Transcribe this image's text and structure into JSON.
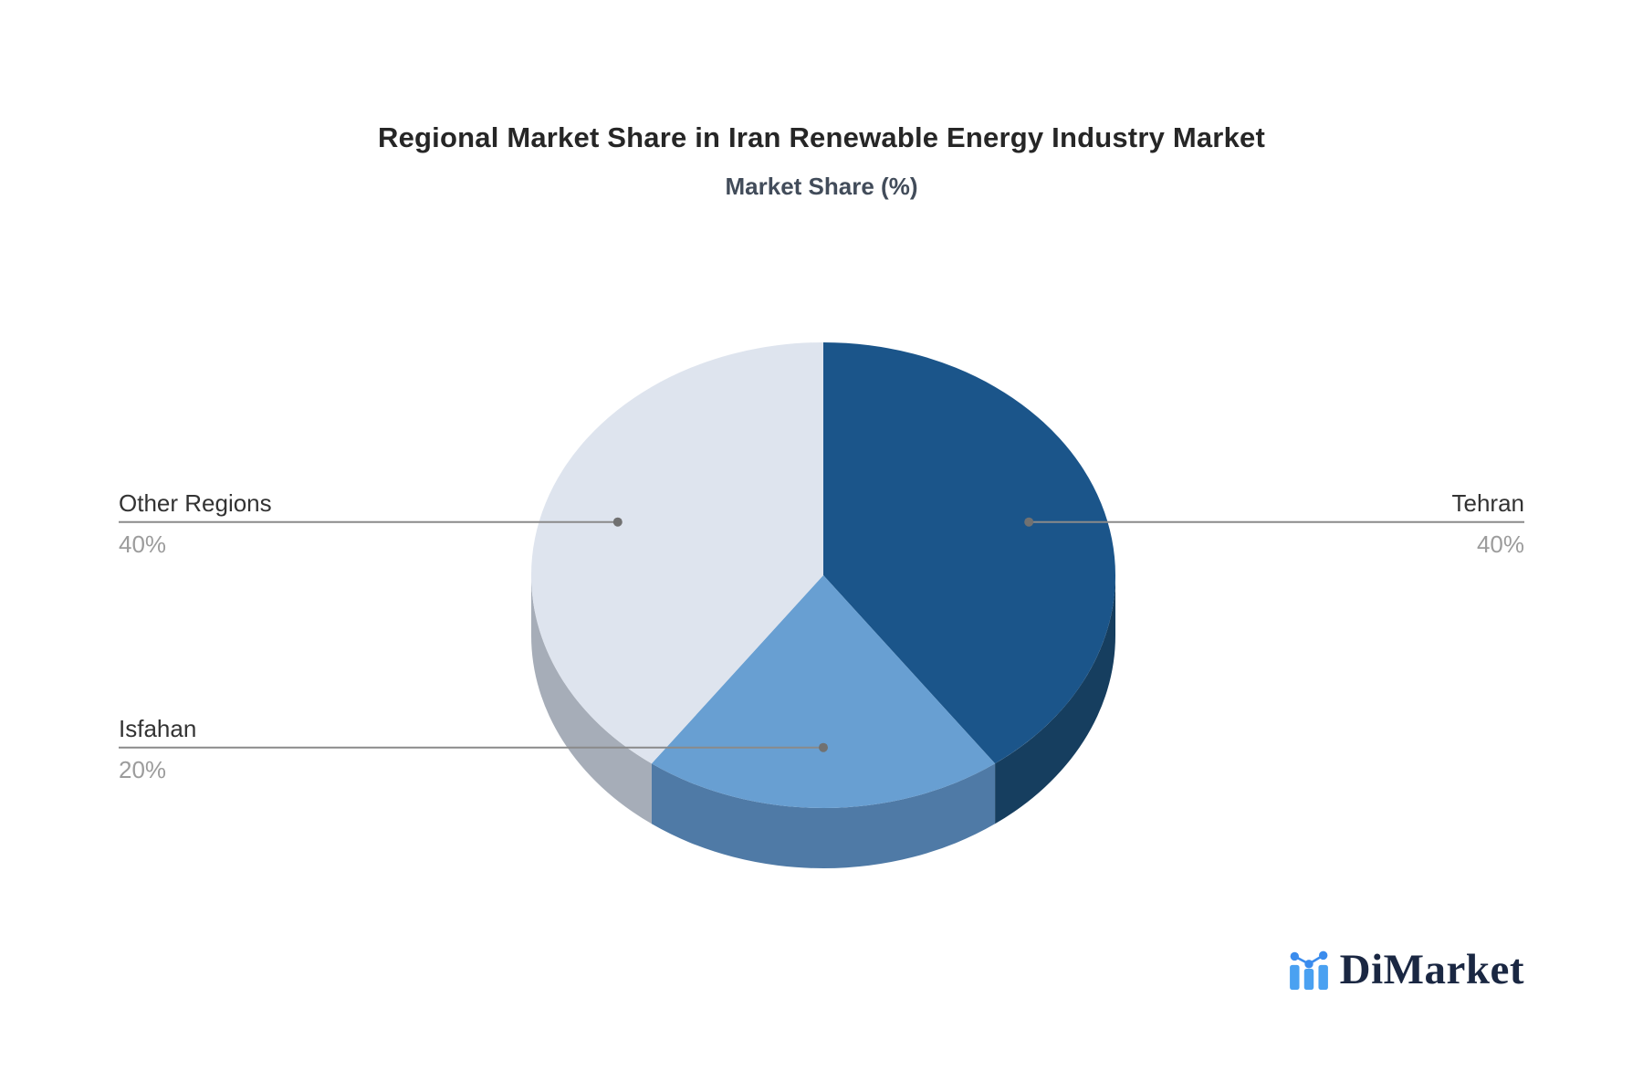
{
  "page": {
    "background": "#ffffff"
  },
  "chart_data": {
    "type": "pie",
    "title": "Regional Market Share in Iran Renewable Energy Industry Market",
    "subtitle": "Market Share (%)",
    "unit": "%",
    "pie_3d": true,
    "start_angle_deg": 0,
    "direction": "clockwise",
    "legend_position": "none",
    "labels": "callout-lines",
    "slices": [
      {
        "label": "Tehran",
        "value": 40,
        "value_label": "40%",
        "color": "#1b558a",
        "side_color": "#163e5f",
        "callout_side": "right"
      },
      {
        "label": "Isfahan",
        "value": 20,
        "value_label": "20%",
        "color": "#689fd2",
        "side_color": "#4f7aa6",
        "callout_side": "left"
      },
      {
        "label": "Other Regions",
        "value": 40,
        "value_label": "40%",
        "color": "#dee4ee",
        "side_color": "#a6adb8",
        "callout_side": "left"
      }
    ],
    "style": {
      "title_color": "#262626",
      "subtitle_color": "#424c5a",
      "label_color": "#333333",
      "value_color": "#9c9c9c",
      "callout_line_color": "#8a8a8a",
      "callout_dot_color": "#717171"
    }
  },
  "branding": {
    "logo_text": "DiMarket",
    "logo_icon": "bar-line-chart-icon",
    "logo_text_color": "#1a2742",
    "logo_bar_color": "#4aa1f1",
    "logo_accent_color": "#3b8ced"
  }
}
